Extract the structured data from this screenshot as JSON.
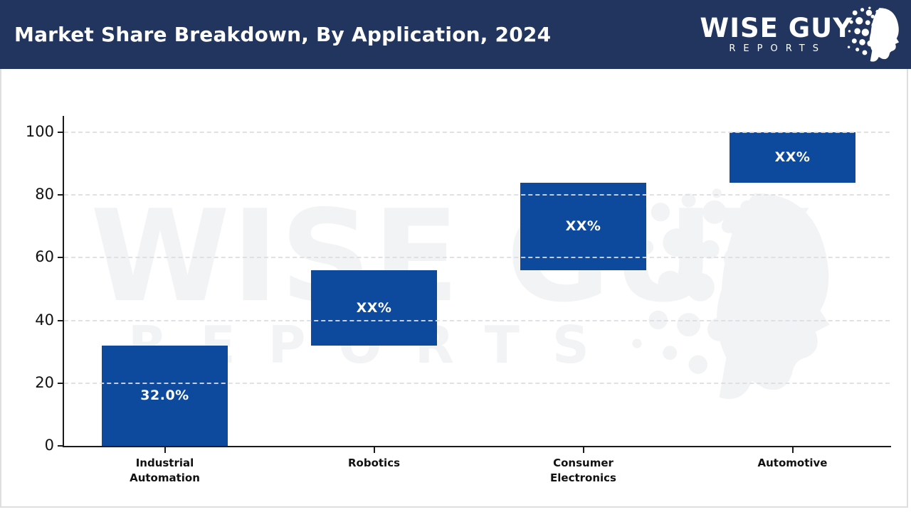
{
  "header": {
    "title": "Market Share Breakdown, By Application, 2024",
    "bg_color": "#22355f",
    "logo": {
      "line1": "WISE GUY",
      "line2": "REPORTS"
    }
  },
  "watermark": {
    "line1": "WISE GUY",
    "line2": "REPORTS"
  },
  "chart_data": {
    "type": "bar",
    "subtype": "waterfall",
    "title": "Market Share Breakdown, By Application, 2024",
    "categories": [
      "Industrial\nAutomation",
      "Robotics",
      "Consumer\nElectronics",
      "Automotive"
    ],
    "segments": [
      {
        "category": "Industrial\nAutomation",
        "start": 0,
        "end": 32,
        "value": 32,
        "label": "32.0%"
      },
      {
        "category": "Robotics",
        "start": 32,
        "end": 56,
        "value": 24,
        "label": "XX%"
      },
      {
        "category": "Consumer\nElectronics",
        "start": 56,
        "end": 84,
        "value": 28,
        "label": "XX%"
      },
      {
        "category": "Automotive",
        "start": 84,
        "end": 100,
        "value": 16,
        "label": "XX%"
      }
    ],
    "yticks": [
      0,
      20,
      40,
      60,
      80,
      100
    ],
    "ylim": [
      0,
      105
    ],
    "xlabel": "",
    "ylabel": "",
    "grid": true,
    "legend": null,
    "bar_color": "#0d4a9e",
    "bar_label_color": "#ffffff",
    "axis_color": "#1a1a1a",
    "grid_color": "#dcdee2"
  }
}
